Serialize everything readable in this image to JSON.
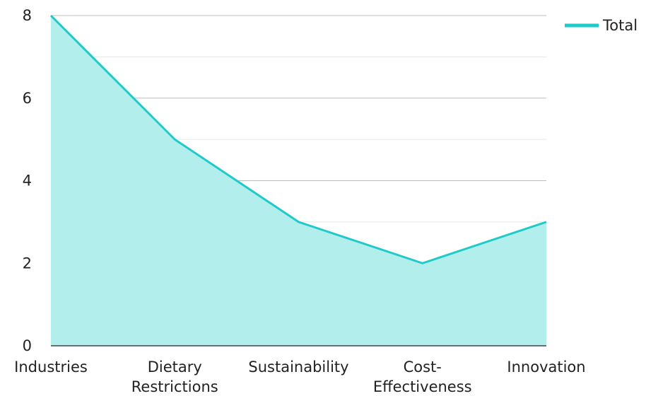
{
  "chart_data": {
    "type": "area",
    "categories": [
      "Industries",
      "Dietary Restrictions",
      "Sustainability",
      "Cost-Effectiveness",
      "Innovation"
    ],
    "category_lines": [
      [
        "Industries"
      ],
      [
        "Dietary",
        "Restrictions"
      ],
      [
        "Sustainability"
      ],
      [
        "Cost-",
        "Effectiveness"
      ],
      [
        "Innovation"
      ]
    ],
    "series": [
      {
        "name": "Total",
        "values": [
          8,
          5,
          3,
          2,
          3
        ]
      }
    ],
    "yticks": [
      "0",
      "2",
      "4",
      "6",
      "8"
    ],
    "ylim": [
      0,
      8
    ],
    "title": "",
    "xlabel": "",
    "ylabel": "",
    "grid": true,
    "legend_position": "top-right",
    "colors": {
      "line": "#1FCACA",
      "fill": "#B2EEEC",
      "grid_major": "#BDBDBD",
      "grid_minor": "#E6E6E6",
      "axis": "#222222"
    }
  }
}
